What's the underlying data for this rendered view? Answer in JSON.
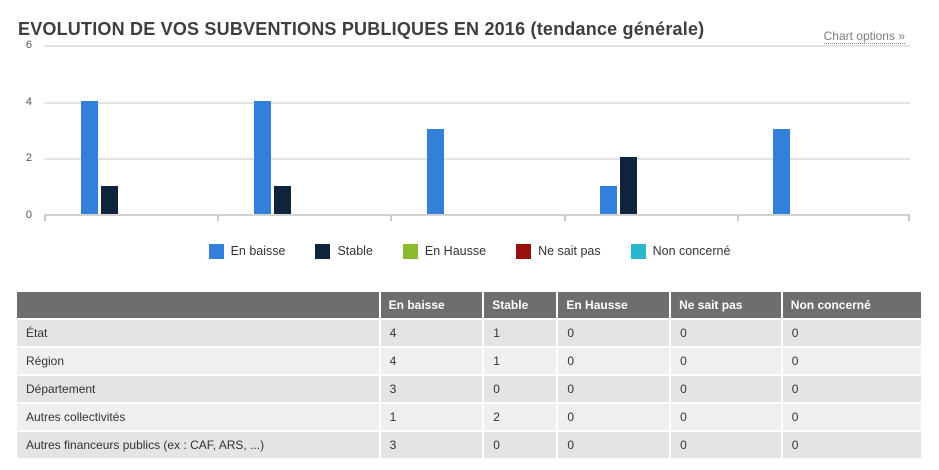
{
  "title": "EVOLUTION DE VOS SUBVENTIONS PUBLIQUES EN 2016 (tendance générale)",
  "chart_options_label": "Chart options »",
  "colors": {
    "en_baisse": "#3380db",
    "stable": "#10253b",
    "en_hausse": "#8cba2d",
    "ne_sait_pas": "#990f10",
    "non_concerne": "#29b7ce",
    "table_header_bg": "#6e6e6e",
    "row_odd": "#e4e4e4",
    "row_even": "#efefef",
    "title_text": "#3e3e3e",
    "link_text": "#7d7d7d"
  },
  "chart_data": {
    "type": "bar",
    "title": "EVOLUTION DE VOS SUBVENTIONS PUBLIQUES EN 2016 (tendance générale)",
    "categories": [
      "État",
      "Région",
      "Département",
      "Autres collectivités",
      "Autres financeurs publics (ex : CAF, ARS, ...)"
    ],
    "series": [
      {
        "name": "En baisse",
        "color": "#3380db",
        "values": [
          4,
          4,
          3,
          1,
          3
        ]
      },
      {
        "name": "Stable",
        "color": "#10253b",
        "values": [
          1,
          1,
          0,
          2,
          0
        ]
      },
      {
        "name": "En Hausse",
        "color": "#8cba2d",
        "values": [
          0,
          0,
          0,
          0,
          0
        ]
      },
      {
        "name": "Ne sait pas",
        "color": "#990f10",
        "values": [
          0,
          0,
          0,
          0,
          0
        ]
      },
      {
        "name": "Non concerné",
        "color": "#29b7ce",
        "values": [
          0,
          0,
          0,
          0,
          0
        ]
      }
    ],
    "xlabel": "",
    "ylabel": "",
    "ylim": [
      0,
      6
    ],
    "yticks": [
      0,
      2,
      4,
      6
    ],
    "grid": true,
    "legend_position": "bottom",
    "x_tick_labels_shown": false
  },
  "table": {
    "columns": [
      "",
      "En baisse",
      "Stable",
      "En Hausse",
      "Ne sait pas",
      "Non concerné"
    ],
    "rows": [
      {
        "label": "État",
        "values": [
          4,
          1,
          0,
          0,
          0
        ]
      },
      {
        "label": "Région",
        "values": [
          4,
          1,
          0,
          0,
          0
        ]
      },
      {
        "label": "Département",
        "values": [
          3,
          0,
          0,
          0,
          0
        ]
      },
      {
        "label": "Autres collectivités",
        "values": [
          1,
          2,
          0,
          0,
          0
        ]
      },
      {
        "label": "Autres financeurs publics (ex : CAF, ARS, ...)",
        "values": [
          3,
          0,
          0,
          0,
          0
        ]
      }
    ]
  }
}
